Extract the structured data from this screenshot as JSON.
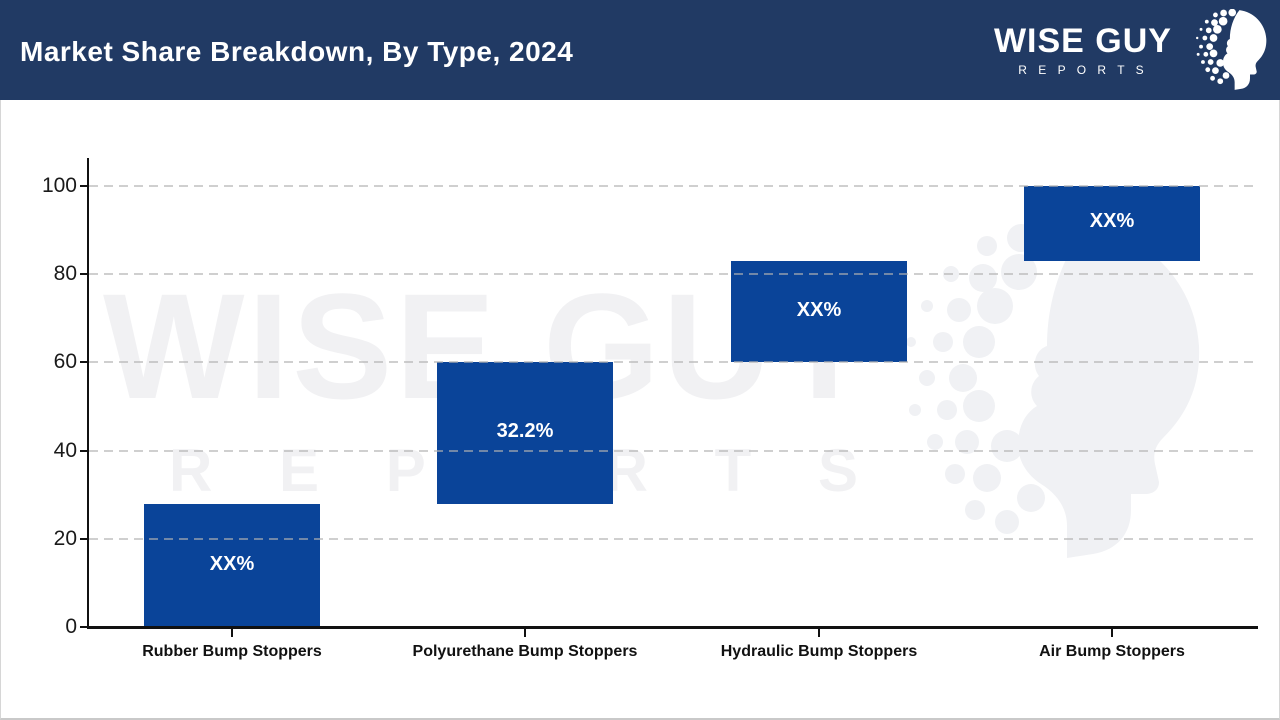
{
  "header": {
    "title": "Market Share Breakdown, By Type, 2024",
    "logo": {
      "line1": "WISE GUY",
      "line2": "R E P O R T S"
    }
  },
  "watermark": {
    "line1": "WISE GUY",
    "line2": "R E P O R T S"
  },
  "chart_data": {
    "type": "bar",
    "subtype": "waterfall",
    "title": "Market Share Breakdown, By Type, 2024",
    "categories": [
      "Rubber Bump Stoppers",
      "Polyurethane Bump Stoppers",
      "Hydraulic Bump Stoppers",
      "Air Bump Stoppers"
    ],
    "segments": [
      {
        "category": "Rubber Bump Stoppers",
        "start": 0,
        "end": 27.8,
        "label": "XX%"
      },
      {
        "category": "Polyurethane Bump Stoppers",
        "start": 27.8,
        "end": 60,
        "label": "32.2%"
      },
      {
        "category": "Hydraulic Bump Stoppers",
        "start": 60,
        "end": 83,
        "label": "XX%"
      },
      {
        "category": "Air Bump Stoppers",
        "start": 83,
        "end": 100,
        "label": "XX%"
      }
    ],
    "yticks": [
      0,
      20,
      40,
      60,
      80,
      100
    ],
    "ylim": [
      0,
      106
    ],
    "grid": "horizontal-dashed",
    "legend": "none",
    "bar_color": "#0A4499",
    "bar_label_color": "#FFFFFF",
    "axis_color": "#111111",
    "gridline_color": "#B2B2B2",
    "header_color": "#213A64",
    "watermark_color": "#F1F1F3"
  }
}
